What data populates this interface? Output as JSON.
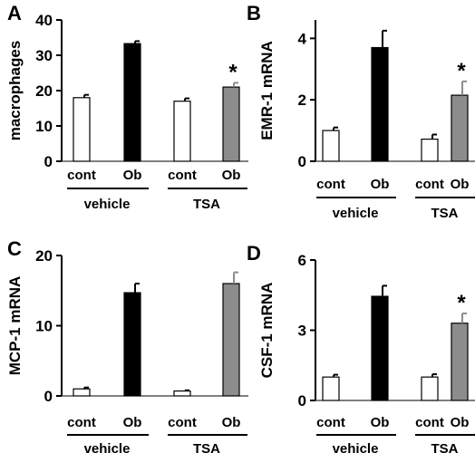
{
  "chart_data": [
    {
      "panel_letter": "A",
      "type": "bar",
      "ylabel": "macrophages",
      "ylim": [
        0,
        40
      ],
      "yticks": [
        0,
        10,
        20,
        30,
        40
      ],
      "categories": [
        "cont",
        "Ob",
        "cont",
        "Ob"
      ],
      "groups": [
        {
          "label": "vehicle"
        },
        {
          "label": "TSA"
        }
      ],
      "values": [
        18,
        33.3,
        17,
        21
      ],
      "errors": [
        0.8,
        0.7,
        0.8,
        1.2
      ],
      "fills": [
        "#ffffff",
        "#000000",
        "#ffffff",
        "#8c8c8c"
      ],
      "significance": [
        "",
        "",
        "",
        "*"
      ]
    },
    {
      "panel_letter": "B",
      "type": "bar",
      "ylabel": "EMR-1 mRNA",
      "ylim": [
        0,
        4.6
      ],
      "yticks": [
        0,
        2,
        4
      ],
      "categories": [
        "cont",
        "Ob",
        "cont",
        "Ob"
      ],
      "groups": [
        {
          "label": "vehicle"
        },
        {
          "label": "TSA"
        }
      ],
      "values": [
        1,
        3.7,
        0.72,
        2.15
      ],
      "errors": [
        0.1,
        0.55,
        0.15,
        0.45
      ],
      "fills": [
        "#ffffff",
        "#000000",
        "#ffffff",
        "#8c8c8c"
      ],
      "significance": [
        "",
        "",
        "",
        "*"
      ]
    },
    {
      "panel_letter": "C",
      "type": "bar",
      "ylabel": "MCP-1 mRNA",
      "ylim": [
        0,
        20
      ],
      "yticks": [
        0,
        10,
        20
      ],
      "categories": [
        "cont",
        "Ob",
        "cont",
        "Ob"
      ],
      "groups": [
        {
          "label": "vehicle"
        },
        {
          "label": "TSA"
        }
      ],
      "values": [
        1,
        14.7,
        0.7,
        16
      ],
      "errors": [
        0.2,
        1.3,
        0.1,
        1.6
      ],
      "fills": [
        "#ffffff",
        "#000000",
        "#ffffff",
        "#8c8c8c"
      ],
      "significance": [
        "",
        "",
        "",
        ""
      ]
    },
    {
      "panel_letter": "D",
      "type": "bar",
      "ylabel": "CSF-1 mRNA",
      "ylim": [
        0,
        6
      ],
      "yticks": [
        0,
        3,
        6
      ],
      "categories": [
        "cont",
        "Ob",
        "cont",
        "Ob"
      ],
      "groups": [
        {
          "label": "vehicle"
        },
        {
          "label": "TSA"
        }
      ],
      "values": [
        1,
        4.45,
        1,
        3.3
      ],
      "errors": [
        0.1,
        0.45,
        0.12,
        0.42
      ],
      "fills": [
        "#ffffff",
        "#000000",
        "#ffffff",
        "#8c8c8c"
      ],
      "significance": [
        "",
        "",
        "",
        "*"
      ]
    }
  ]
}
